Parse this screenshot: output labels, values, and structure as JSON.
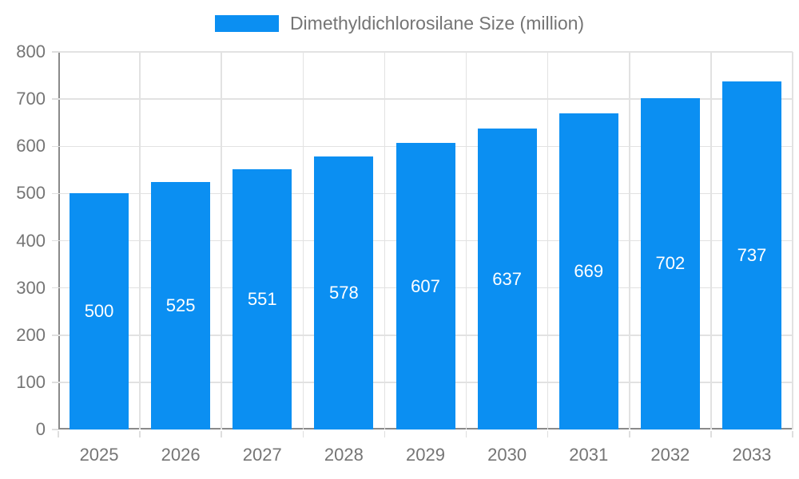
{
  "chart_data": {
    "type": "bar",
    "title": "Dimethyldichlorosilane Size (million)",
    "legend": {
      "label": "Dimethyldichlorosilane Size (million)",
      "position": "top-center"
    },
    "categories": [
      "2025",
      "2026",
      "2027",
      "2028",
      "2029",
      "2030",
      "2031",
      "2032",
      "2033"
    ],
    "values": [
      500,
      525,
      551,
      578,
      607,
      637,
      669,
      702,
      737
    ],
    "xlabel": "",
    "ylabel": "",
    "ylim": [
      0,
      800
    ],
    "ytick_step": 100,
    "grid": true,
    "colors": {
      "bar": "#0b8ff2",
      "axis": "#8a8a8a",
      "grid": "#e2e2e2",
      "tick": "#dedede",
      "text": "#757575",
      "bar_label": "#ffffff",
      "background": "#ffffff"
    }
  }
}
